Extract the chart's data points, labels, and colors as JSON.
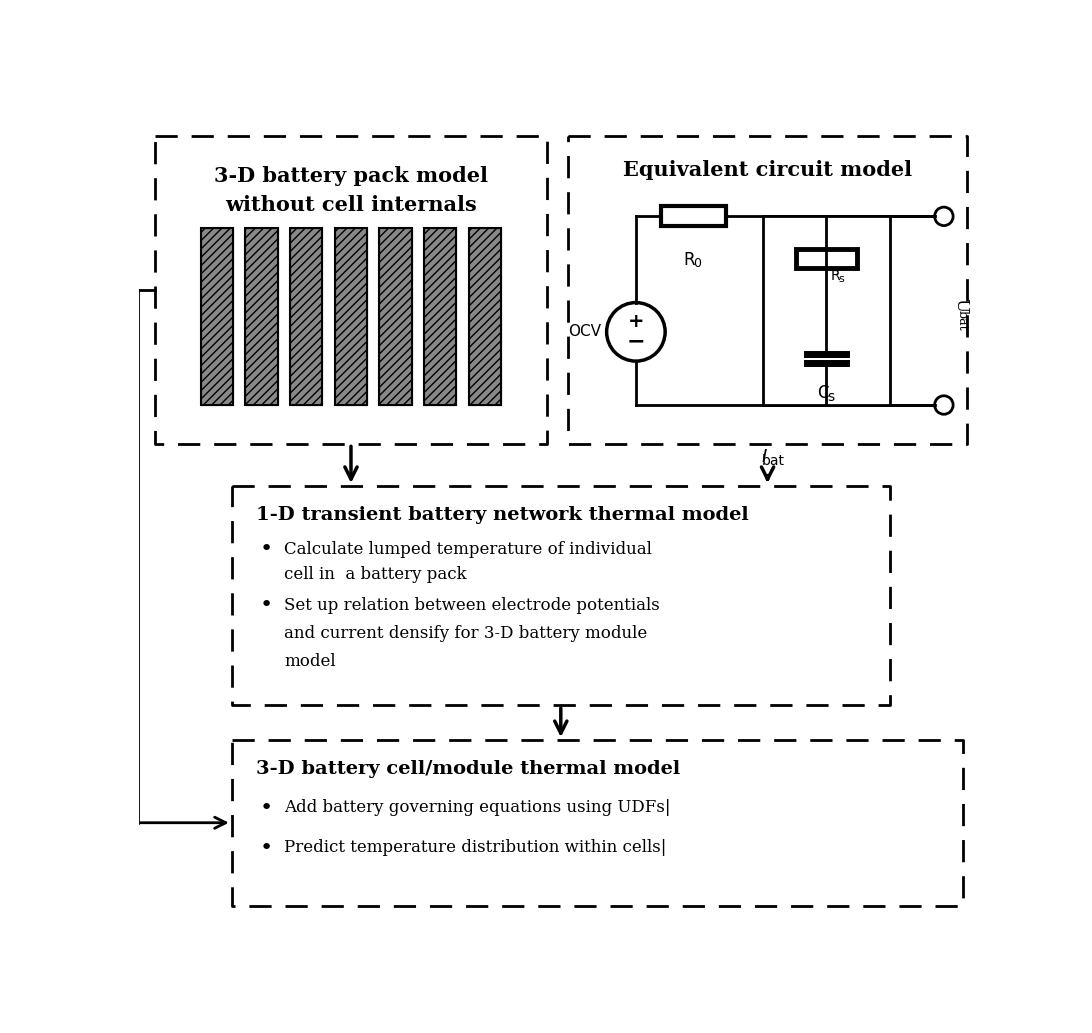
{
  "background_color": "#ffffff",
  "fig_width": 10.92,
  "fig_height": 10.33,
  "box1_title_line1": "3-D battery pack model",
  "box1_title_line2": "without cell internals",
  "box2_title": "Equivalent circuit model",
  "box3_title": "1-D transient battery network thermal model",
  "box3_bullet1_line1": "Calculate lumped temperature of individual",
  "box3_bullet1_line2": "cell in  a battery pack",
  "box3_bullet2_line1": "Set up relation between electrode potentials",
  "box3_bullet2_line2": "and current densify for 3-D battery module",
  "box3_bullet2_line3": "model",
  "box4_title": "3-D battery cell/module thermal model",
  "box4_bullet1": "Add battery governing equations using UDFs|",
  "box4_bullet2": "Predict temperature distribution within cells|",
  "num_batteries": 7,
  "battery_fill": "#888888",
  "battery_edge": "#000000",
  "line_color": "#000000"
}
